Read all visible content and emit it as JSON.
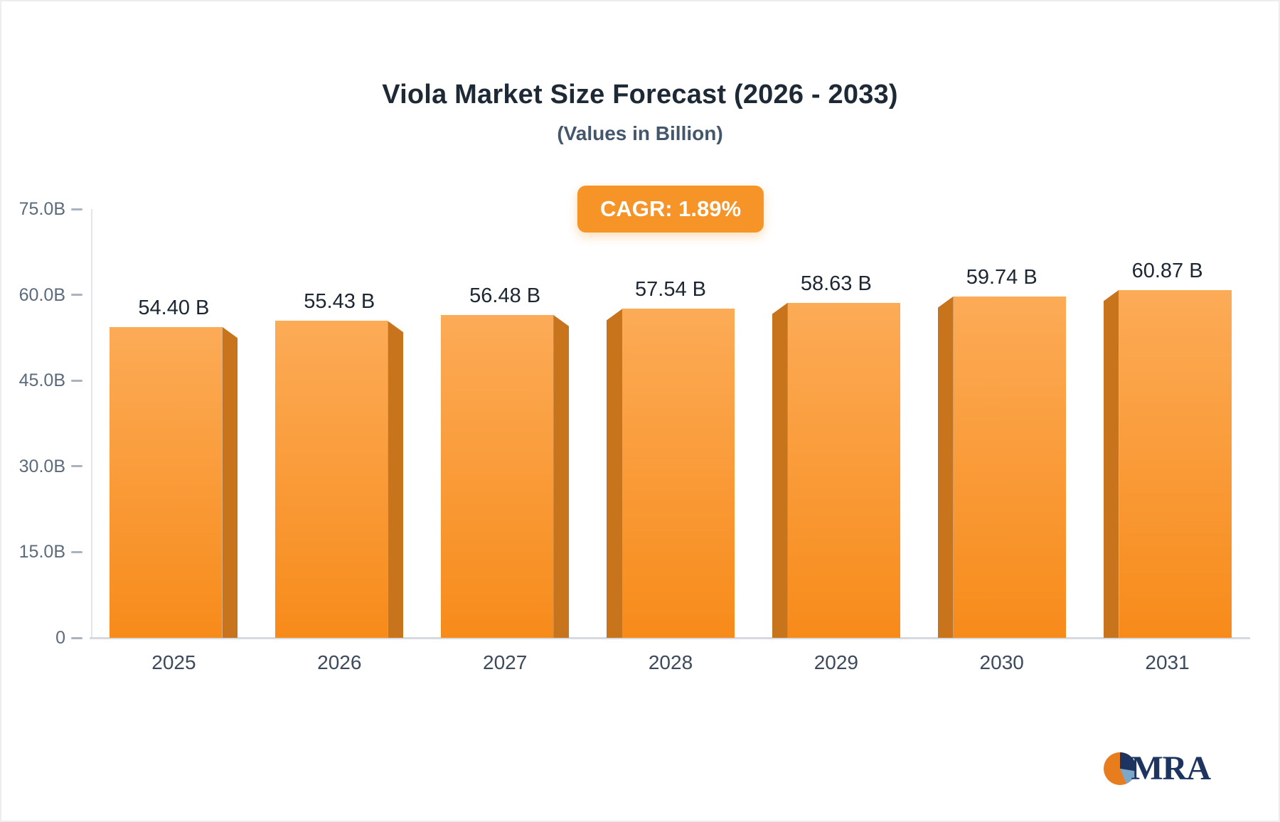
{
  "header": {
    "title": "Viola Market Size Forecast (2026 - 2033)",
    "subtitle": "(Values in Billion)"
  },
  "badge": {
    "label": "CAGR: 1.89%",
    "bg": "#f79428"
  },
  "chart_data": {
    "type": "bar",
    "title": "Viola Market Size Forecast (2026 - 2033)",
    "subtitle": "(Values in Billion)",
    "categories": [
      "2025",
      "2026",
      "2027",
      "2028",
      "2029",
      "2030",
      "2031"
    ],
    "values": [
      54.4,
      55.43,
      56.48,
      57.54,
      58.63,
      59.74,
      60.87
    ],
    "value_labels": [
      "54.40 B",
      "55.43 B",
      "56.48 B",
      "57.54 B",
      "58.63 B",
      "59.74 B",
      "60.87 B"
    ],
    "ylim": [
      0,
      75
    ],
    "yticks": [
      0,
      15,
      30,
      45,
      60,
      75
    ],
    "ytick_labels": [
      "0",
      "15.0B",
      "30.0B",
      "45.0B",
      "60.0B",
      "75.0B"
    ],
    "grid": false,
    "legend": "none",
    "bar_color_top": "#fcab57",
    "bar_color_bottom": "#f78b1a",
    "bar_side_color": "#c8741c"
  },
  "footer": {
    "logo_text": "MRA"
  },
  "colors": {
    "accent_orange": "#f79428",
    "title_text": "#1e2936",
    "axis_text": "#5c6b7c",
    "logo_navy": "#1d3461"
  }
}
